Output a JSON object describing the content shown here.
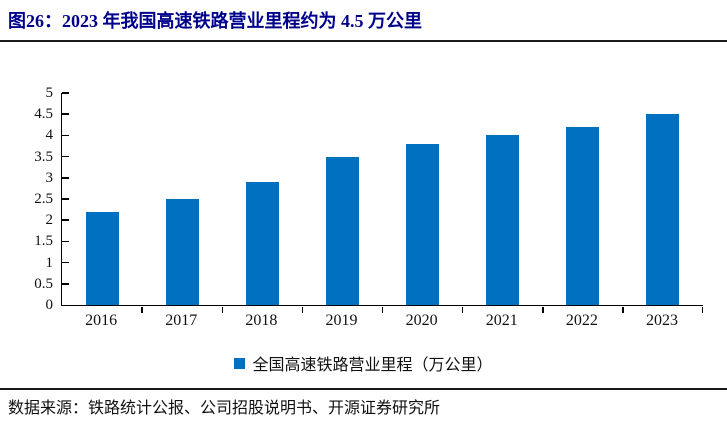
{
  "header": {
    "title": "图26：2023 年我国高速铁路营业里程约为 4.5 万公里"
  },
  "chart_data": {
    "type": "bar",
    "categories": [
      "2016",
      "2017",
      "2018",
      "2019",
      "2020",
      "2021",
      "2022",
      "2023"
    ],
    "values": [
      2.2,
      2.5,
      2.9,
      3.5,
      3.8,
      4.0,
      4.2,
      4.5
    ],
    "title": "图26：2023 年我国高速铁路营业里程约为 4.5 万公里",
    "legend": "全国高速铁路营业里程（万公里）",
    "xlabel": "",
    "ylabel": "",
    "ylim": [
      0,
      5
    ],
    "yticks": [
      0,
      0.5,
      1,
      1.5,
      2,
      2.5,
      3,
      3.5,
      4,
      4.5,
      5
    ],
    "grid": false,
    "legend_position": "bottom",
    "bar_color": "#0070C0",
    "axis_color": "#000000"
  },
  "footer": {
    "source": "数据来源：铁路统计公报、公司招股说明书、开源证券研究所"
  },
  "colors": {
    "title_text": "#00008B",
    "bar": "#0070C0",
    "text": "#111111",
    "rule": "#1a1a1a"
  }
}
